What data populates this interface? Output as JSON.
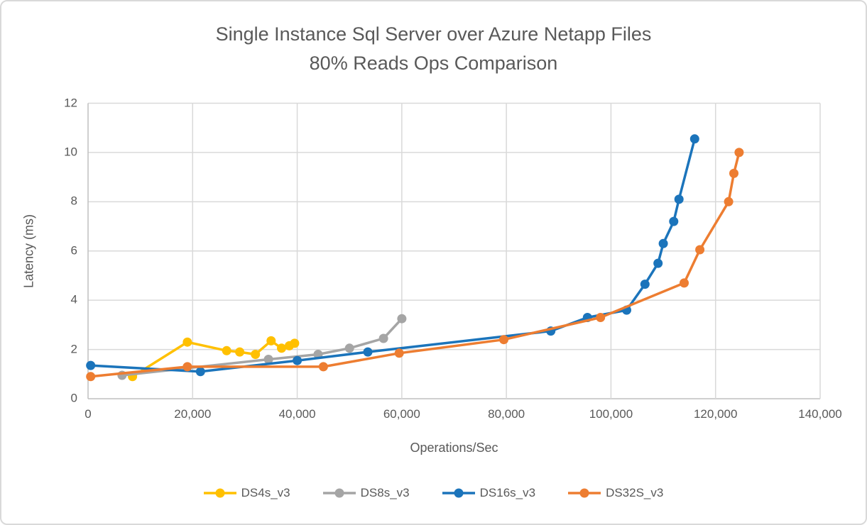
{
  "chart_data": {
    "type": "line",
    "title": "Single Instance Sql Server over Azure Netapp Files",
    "subtitle": "80% Reads Ops Comparison",
    "xlabel": "Operations/Sec",
    "ylabel": "Latency (ms)",
    "xlim": [
      0,
      140000
    ],
    "ylim": [
      0,
      12
    ],
    "grid": true,
    "legend_position": "bottom",
    "x_ticks": [
      {
        "value": 0,
        "label": "0"
      },
      {
        "value": 20000,
        "label": "20,000"
      },
      {
        "value": 40000,
        "label": "40,000"
      },
      {
        "value": 60000,
        "label": "60,000"
      },
      {
        "value": 80000,
        "label": "80,000"
      },
      {
        "value": 100000,
        "label": "100,000"
      },
      {
        "value": 120000,
        "label": "120,000"
      },
      {
        "value": 140000,
        "label": "140,000"
      }
    ],
    "y_ticks": [
      {
        "value": 0,
        "label": "0"
      },
      {
        "value": 2,
        "label": "2"
      },
      {
        "value": 4,
        "label": "4"
      },
      {
        "value": 6,
        "label": "6"
      },
      {
        "value": 8,
        "label": "8"
      },
      {
        "value": 10,
        "label": "10"
      },
      {
        "value": 12,
        "label": "12"
      }
    ],
    "series": [
      {
        "name": "DS4s_v3",
        "color": "#FFC000",
        "points": [
          [
            8500,
            0.9
          ],
          [
            19000,
            2.3
          ],
          [
            26500,
            1.95
          ],
          [
            29000,
            1.9
          ],
          [
            32000,
            1.8
          ],
          [
            35000,
            2.35
          ],
          [
            37000,
            2.05
          ],
          [
            38500,
            2.15
          ],
          [
            39500,
            2.25
          ]
        ]
      },
      {
        "name": "DS8s_v3",
        "color": "#A5A5A5",
        "points": [
          [
            6500,
            0.95
          ],
          [
            34500,
            1.6
          ],
          [
            44000,
            1.8
          ],
          [
            50000,
            2.05
          ],
          [
            56500,
            2.45
          ],
          [
            60000,
            3.25
          ]
        ]
      },
      {
        "name": "DS16s_v3",
        "color": "#1B74BB",
        "points": [
          [
            500,
            1.35
          ],
          [
            21500,
            1.1
          ],
          [
            40000,
            1.55
          ],
          [
            53500,
            1.9
          ],
          [
            88500,
            2.75
          ],
          [
            95500,
            3.3
          ],
          [
            103000,
            3.6
          ],
          [
            106500,
            4.65
          ],
          [
            109000,
            5.5
          ],
          [
            110000,
            6.3
          ],
          [
            112000,
            7.2
          ],
          [
            113000,
            8.1
          ],
          [
            116000,
            10.55
          ]
        ]
      },
      {
        "name": "DS32S_v3",
        "color": "#ED7D31",
        "points": [
          [
            500,
            0.9
          ],
          [
            19000,
            1.3
          ],
          [
            45000,
            1.3
          ],
          [
            59500,
            1.85
          ],
          [
            79500,
            2.4
          ],
          [
            98000,
            3.3
          ],
          [
            114000,
            4.7
          ],
          [
            117000,
            6.05
          ],
          [
            122500,
            8.0
          ],
          [
            123500,
            9.15
          ],
          [
            124500,
            10.0
          ]
        ]
      }
    ],
    "colors": {
      "gridline": "#D9D9D9",
      "axis_line": "#BFBFBF",
      "text": "#595959"
    }
  }
}
